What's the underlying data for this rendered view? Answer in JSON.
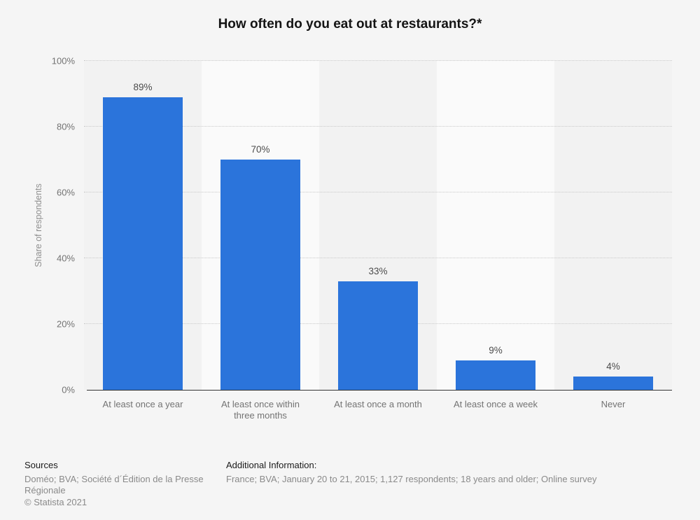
{
  "chart_data": {
    "type": "bar",
    "title": "How often do you eat out at restaurants?*",
    "categories": [
      "At least once a year",
      "At least once within three months",
      "At least once a month",
      "At least once a week",
      "Never"
    ],
    "x_tick_labels": [
      "At least once a year",
      "At least once within\nthree months",
      "At least once a month",
      "At least once a week",
      "Never"
    ],
    "values": [
      89,
      70,
      33,
      9,
      4
    ],
    "value_labels": [
      "89%",
      "70%",
      "33%",
      "9%",
      "4%"
    ],
    "xlabel": "",
    "ylabel": "Share of respondents",
    "ylim": [
      0,
      100
    ],
    "yticks": [
      0,
      20,
      40,
      60,
      80,
      100
    ],
    "ytick_labels": [
      "0%",
      "20%",
      "40%",
      "60%",
      "80%",
      "100%"
    ],
    "grid": "horizontal dotted",
    "legend": "none"
  },
  "footer": {
    "sources_heading": "Sources",
    "sources_text": "Doméo; BVA; Société d´Édition de la Presse Régionale",
    "copyright": "© Statista 2021",
    "additional_info_heading": "Additional Information:",
    "additional_info_text": "France; BVA; January 20 to 21, 2015; 1,127 respondents; 18 years and older; Online survey"
  },
  "colors": {
    "bar": "#2b74db",
    "page_bg": "#f5f5f5",
    "band_dark": "#f2f2f2",
    "band_light": "#fafafa",
    "gridline": "#c9c9c9",
    "axis_line": "#333333",
    "title_text": "#141414",
    "tick_text": "#737373",
    "value_label_text": "#4b4b4b",
    "y_axis_title_text": "#8f8f8f",
    "footer_heading_text": "#1a1a1a",
    "footer_text": "#8a8a8a"
  }
}
